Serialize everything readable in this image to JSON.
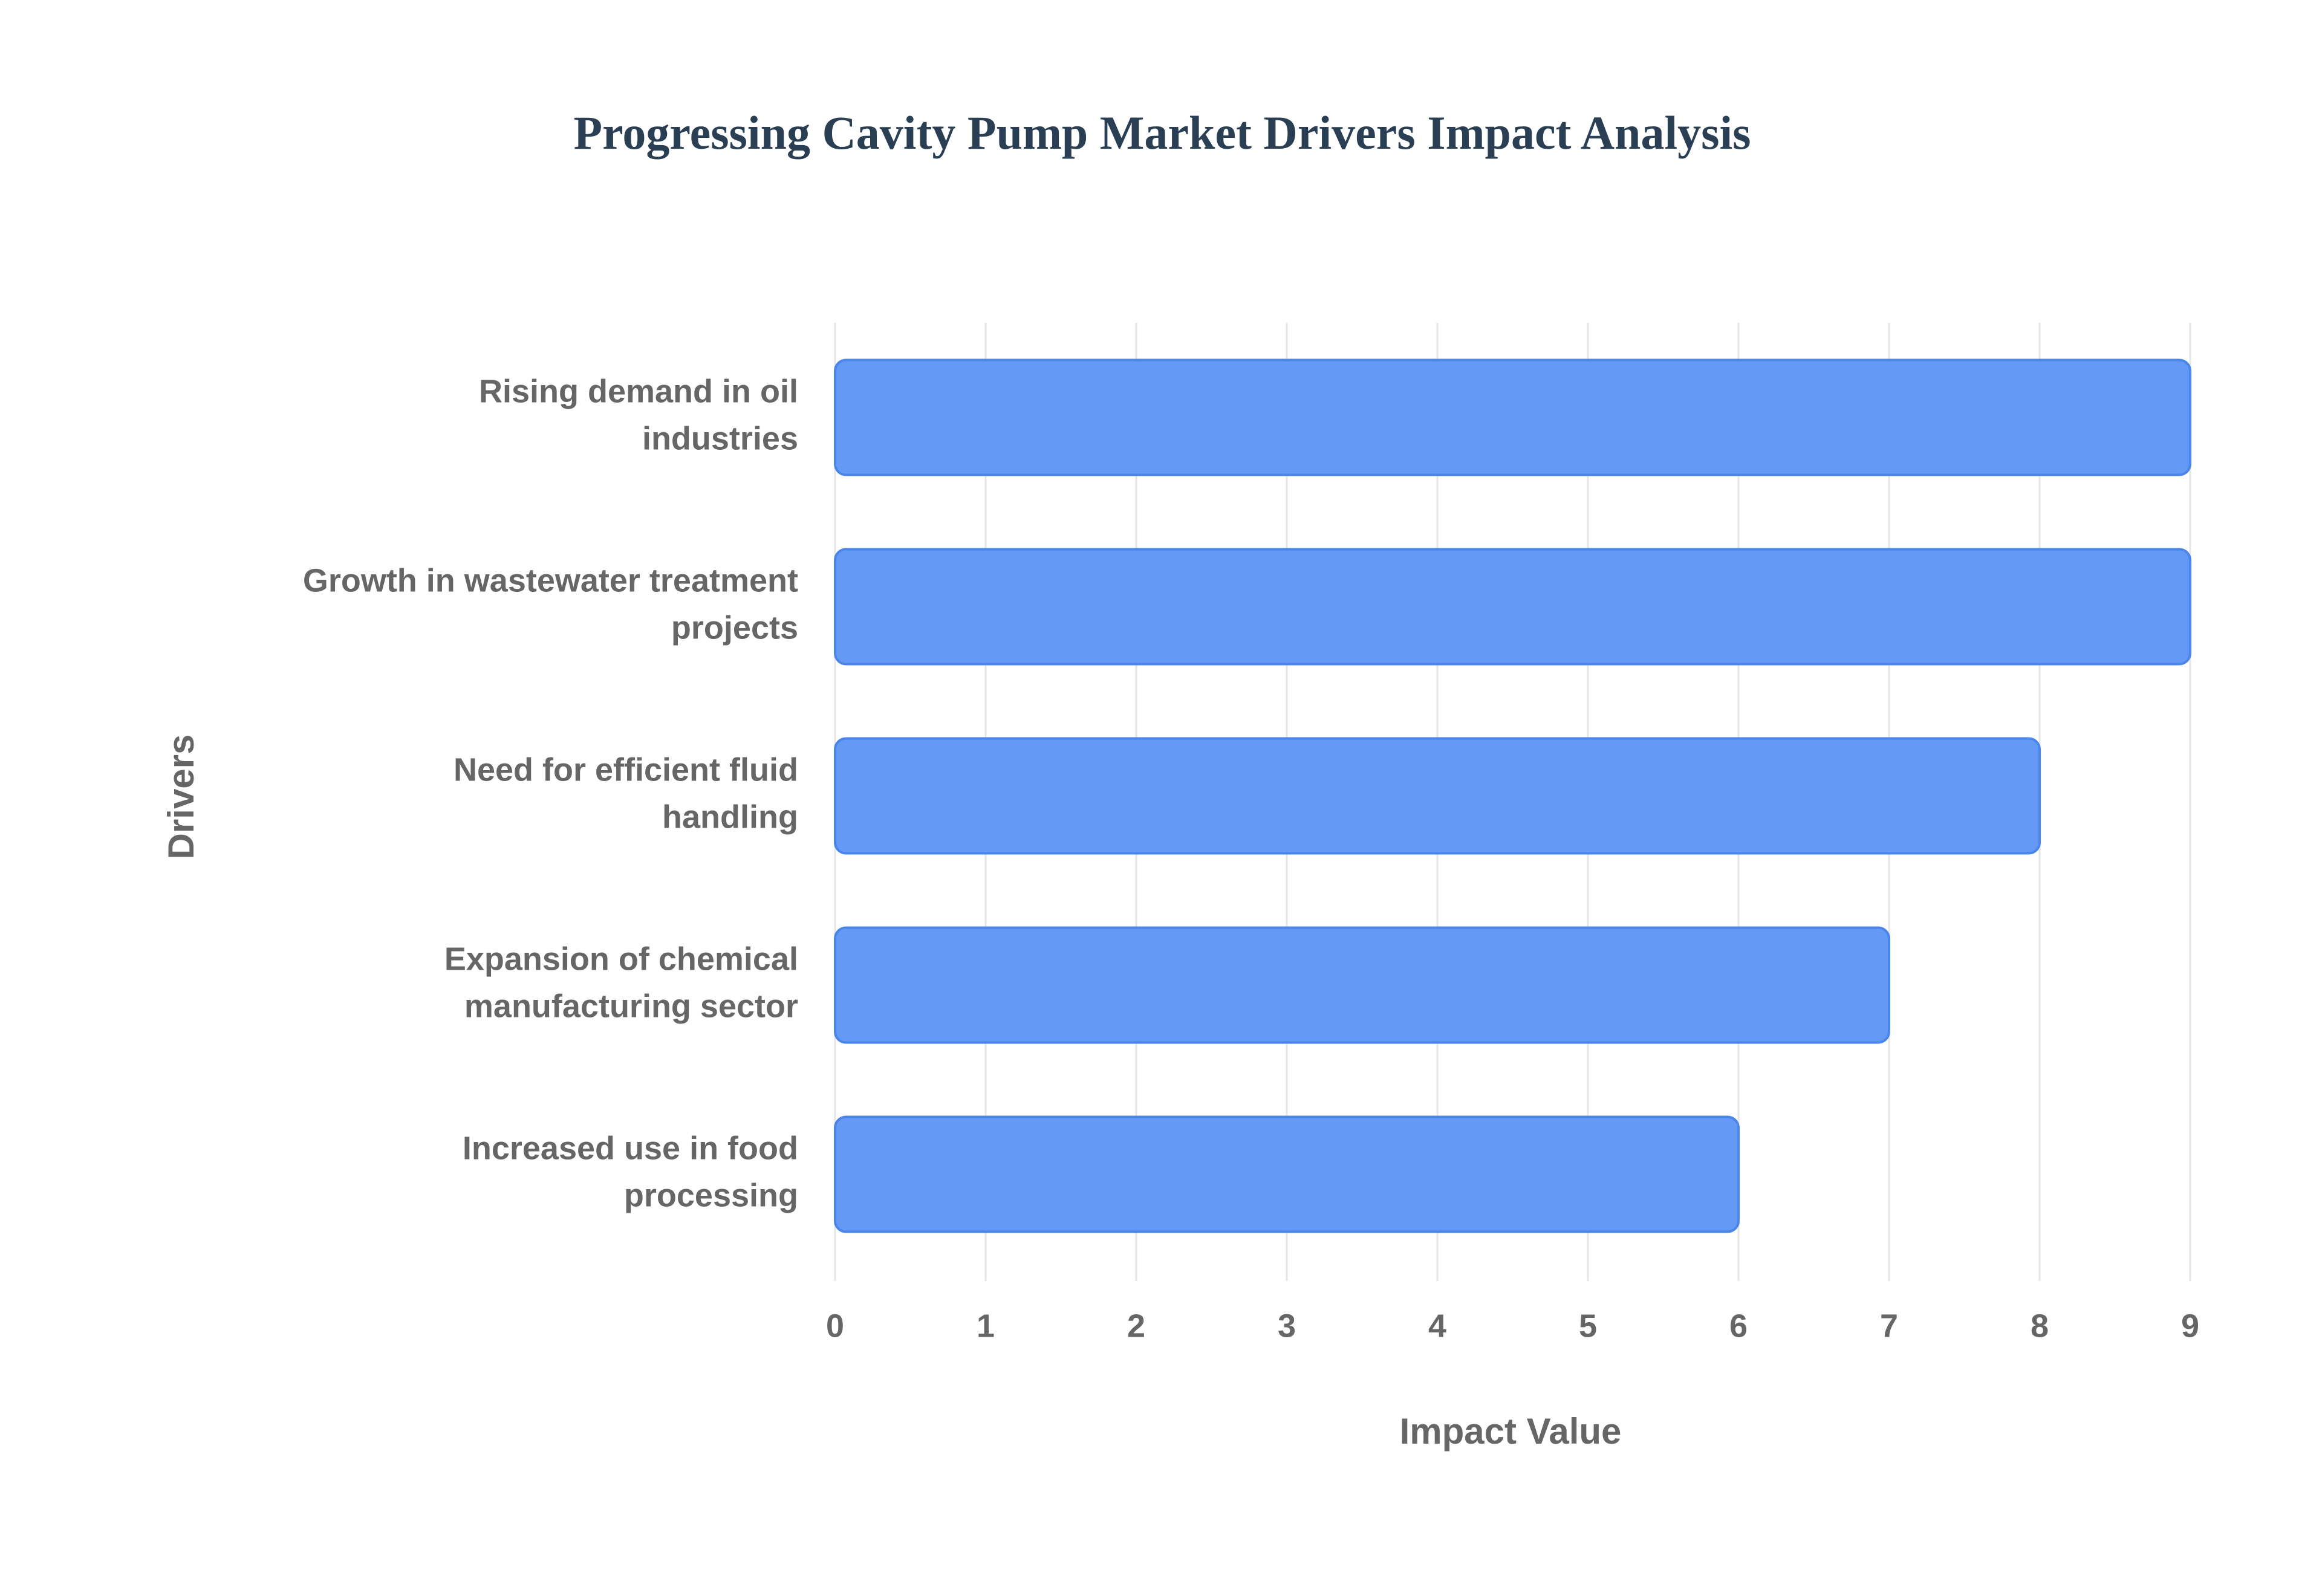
{
  "chart_data": {
    "type": "bar",
    "orientation": "horizontal",
    "title": "Progressing Cavity Pump Market Drivers Impact Analysis",
    "x_axis_label": "Impact Value",
    "y_axis_label": "Drivers",
    "categories": [
      "Rising demand in oil industries",
      "Growth in wastewater treatment projects",
      "Need for efficient fluid handling",
      "Expansion of chemical manufacturing sector",
      "Increased use in food processing"
    ],
    "values": [
      9,
      9,
      8,
      7,
      6
    ],
    "color": "#6499f5",
    "xlim": [
      0,
      9
    ],
    "xticks": [
      0,
      1,
      2,
      3,
      4,
      5,
      6,
      7,
      8,
      9
    ],
    "grid": true
  }
}
